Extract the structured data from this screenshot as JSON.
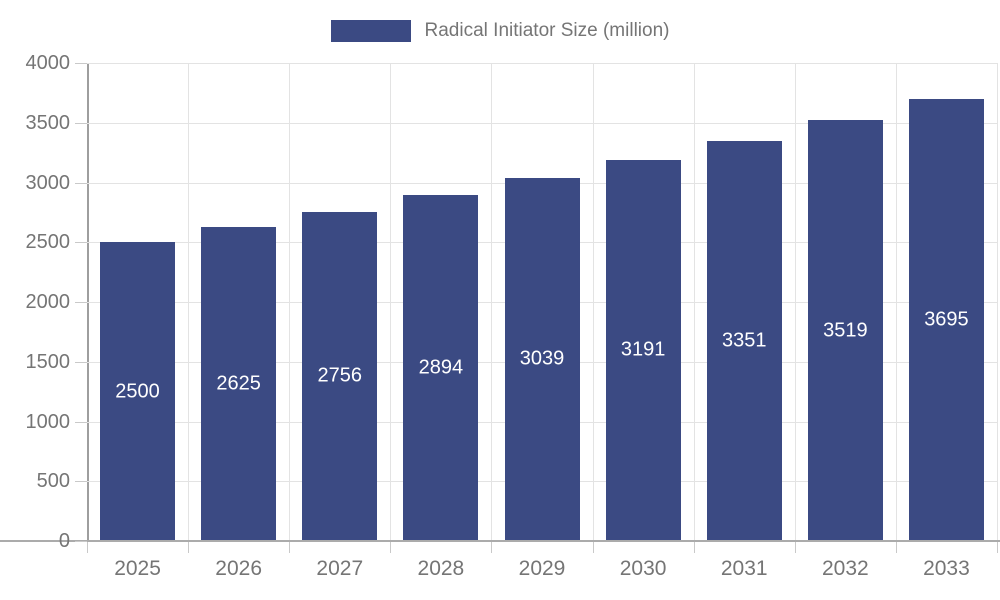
{
  "chart_data": {
    "type": "bar",
    "title": "Radical Initiator Size (million)",
    "categories": [
      "2025",
      "2026",
      "2027",
      "2028",
      "2029",
      "2030",
      "2031",
      "2032",
      "2033"
    ],
    "series": [
      {
        "name": "Radical Initiator Size (million)",
        "values": [
          2500,
          2625,
          2756,
          2894,
          3039,
          3191,
          3351,
          3519,
          3695
        ]
      }
    ],
    "xlabel": "",
    "ylabel": "",
    "ylim": [
      0,
      4000
    ],
    "yticks": [
      0,
      500,
      1000,
      1500,
      2000,
      2500,
      3000,
      3500,
      4000
    ],
    "grid": true,
    "legend_position": "top",
    "value_label_position": "inside-center"
  },
  "colors": {
    "bar": "#3B4A83",
    "grid": "#E3E3E3",
    "axis": "#9E9E9E",
    "baseline": "#ABABAB",
    "tick": "#C9C9C9",
    "text": "#757575",
    "value_label": "#FFFFFF",
    "background": "#FFFFFF"
  }
}
